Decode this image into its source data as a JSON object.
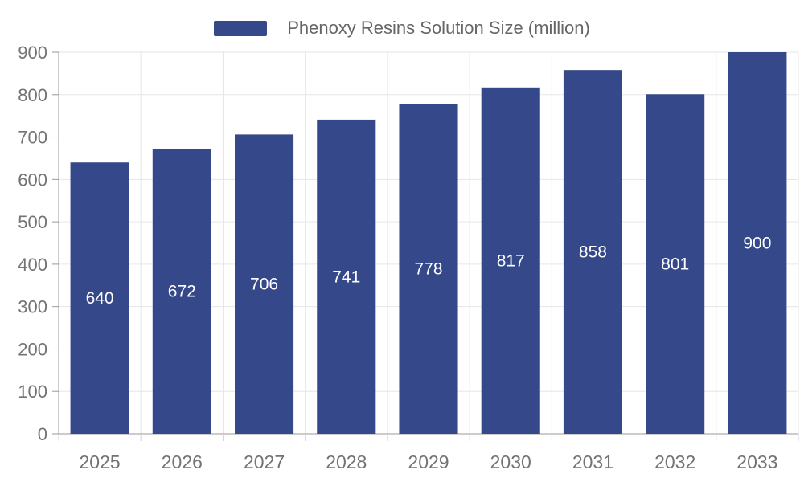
{
  "legend": {
    "label": "Phenoxy Resins Solution Size (million)"
  },
  "colors": {
    "bar": "#35488a",
    "grid": "#e6e6e6",
    "axis": "#999999",
    "x_tick": "#d4d4d4",
    "axis_text": "#737373",
    "value_text": "#ffffff",
    "legend_text": "#666666"
  },
  "chart_data": {
    "type": "bar",
    "categories": [
      "2025",
      "2026",
      "2027",
      "2028",
      "2029",
      "2030",
      "2031",
      "2032",
      "2033"
    ],
    "values": [
      640,
      672,
      706,
      741,
      778,
      817,
      858,
      801,
      900
    ],
    "title": "Phenoxy Resins Solution Size (million)",
    "xlabel": "",
    "ylabel": "",
    "ylim": [
      0,
      900
    ],
    "ytick_step": 100,
    "grid": true,
    "legend_position": "top",
    "value_labels": "inside-center"
  }
}
